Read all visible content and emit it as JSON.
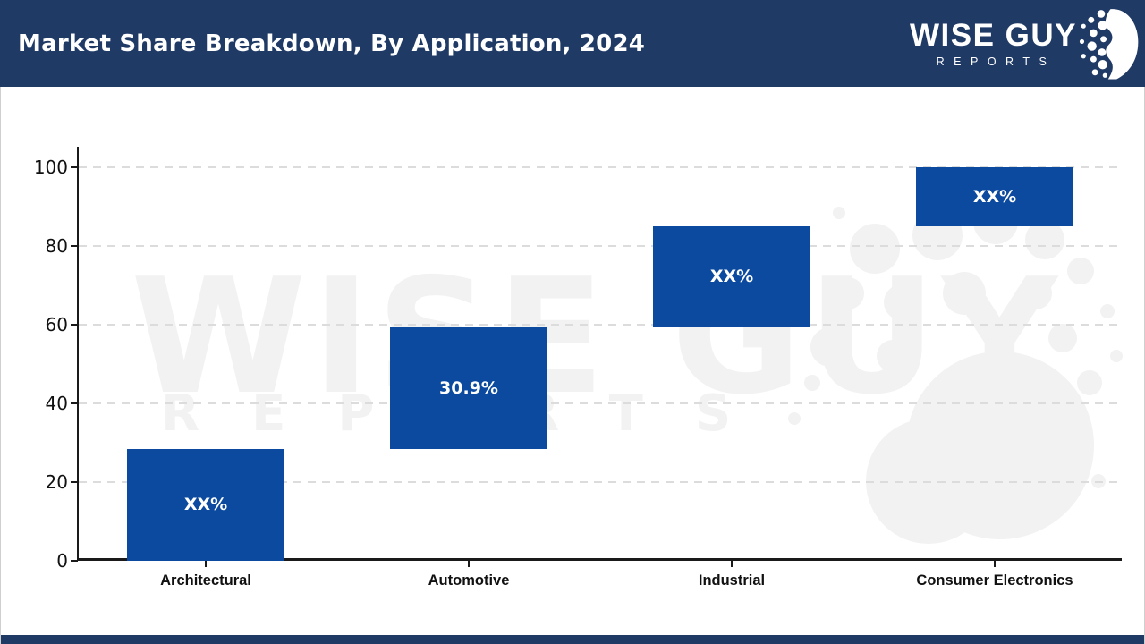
{
  "header": {
    "title": "Market Share Breakdown, By Application, 2024",
    "logo_line1": "WISE GUY",
    "logo_line2": "REPORTS"
  },
  "watermark": {
    "line1": "WISE GUY",
    "line2": "REPORTS"
  },
  "chart_data": {
    "type": "bar",
    "variant": "floating-waterfall",
    "title": "Market Share Breakdown, By Application, 2024",
    "categories": [
      "Architectural",
      "Automotive",
      "Industrial",
      "Consumer Electronics"
    ],
    "segments": [
      {
        "category": "Architectural",
        "start": 0,
        "end": 28.5,
        "label": "XX%"
      },
      {
        "category": "Automotive",
        "start": 28.5,
        "end": 59.4,
        "label": "30.9%"
      },
      {
        "category": "Industrial",
        "start": 59.4,
        "end": 85.0,
        "label": "XX%"
      },
      {
        "category": "Consumer Electronics",
        "start": 85.0,
        "end": 100.0,
        "label": "XX%"
      }
    ],
    "xlabel": "",
    "ylabel": "",
    "yticks": [
      0,
      20,
      40,
      60,
      80,
      100
    ],
    "ylim": [
      0,
      105
    ],
    "grid": "horizontal-dashed",
    "legend": "none",
    "bar_color": "#0b4a9e",
    "bar_label_color": "#ffffff",
    "axis_color": "#1a1a1a",
    "grid_color": "#dcdcdc",
    "tick_label_color": "#111111"
  },
  "colors": {
    "header_bg": "#203a66",
    "footer_bg": "#203a66",
    "watermark": "#f2f2f3"
  }
}
